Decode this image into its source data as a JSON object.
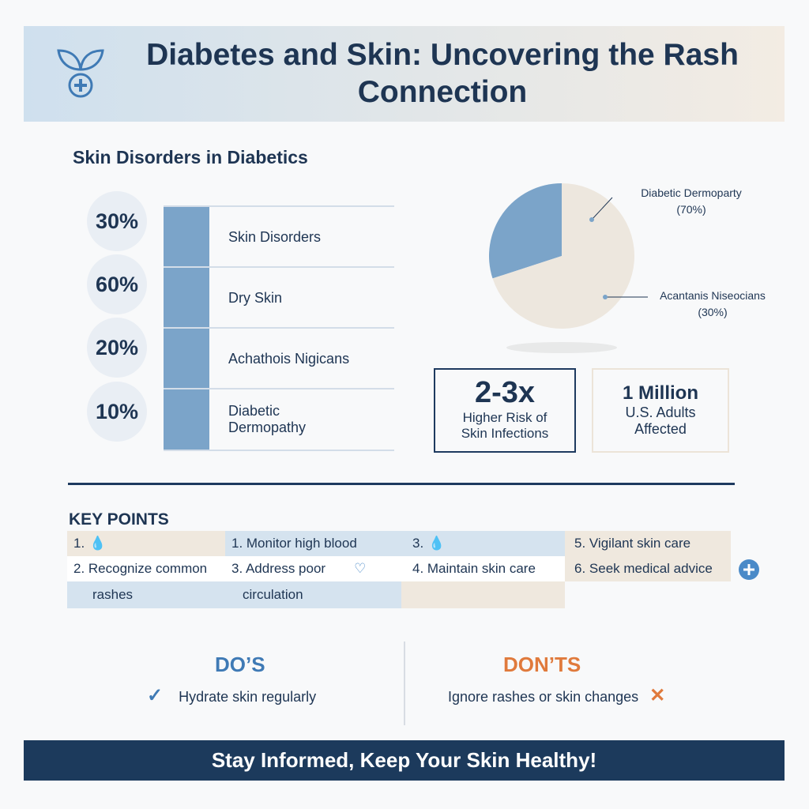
{
  "header": {
    "title": "Diabetes and Skin: Uncovering the Rash Connection"
  },
  "disorders": {
    "title": "Skin Disorders in Diabetics",
    "items": [
      {
        "percent": "30%",
        "label": "Skin Disorders"
      },
      {
        "percent": "60%",
        "label": "Dry Skin"
      },
      {
        "percent": "20%",
        "label": "Achathois Nigicans"
      },
      {
        "percent": "10%",
        "label": "Diabetic Dermopathy"
      }
    ]
  },
  "pie": {
    "type": "pie",
    "labels": [
      "Diabetic Dermoparty",
      "Acantanis Niseocians"
    ],
    "values": [
      70,
      30
    ],
    "value_labels": [
      "(70%)",
      "(30%)"
    ],
    "colors": [
      "#ede7de",
      "#7ba4c9"
    ]
  },
  "stats": [
    {
      "value": "2-3x",
      "label": "Higher Risk of Skin Infections"
    },
    {
      "value": "1 Million",
      "label": "U.S. Adults Affected"
    }
  ],
  "key_points": {
    "title": "KEY POINTS",
    "rows": [
      [
        "1.",
        "1. Monitor high blood",
        "3.",
        "5. Vigilant skin care"
      ],
      [
        "2. Recognize common",
        "3. Address poor",
        "4. Maintain skin care",
        "6. Seek medical advice"
      ],
      [
        "rashes",
        "circulation"
      ]
    ]
  },
  "dos": {
    "title": "DO’S",
    "item": "Hydrate skin regularly"
  },
  "donts": {
    "title": "DON’TS",
    "item": "Ignore rashes or skin changes"
  },
  "footer": "Stay Informed, Keep Your Skin Healthy!"
}
